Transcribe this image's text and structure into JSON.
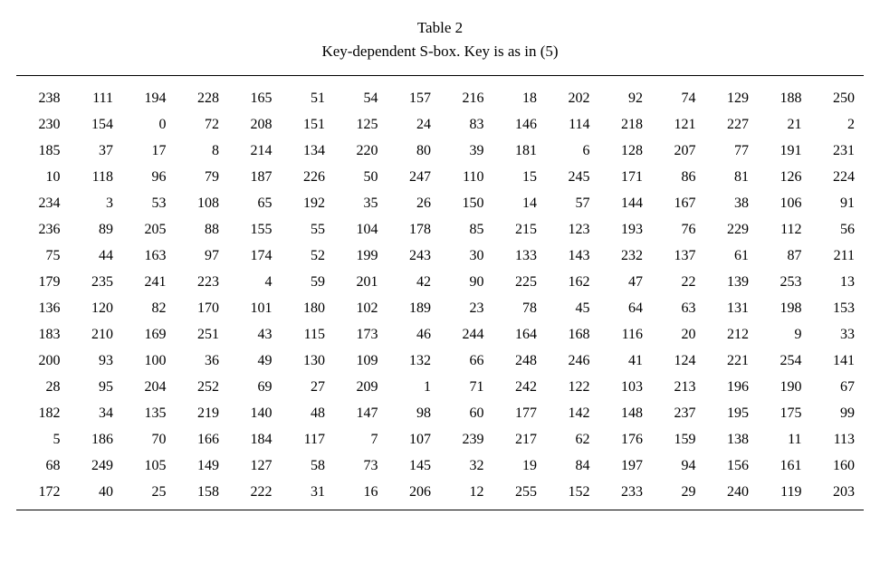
{
  "caption": {
    "label": "Table 2",
    "desc": "Key-dependent S-box. Key is as in (5)"
  },
  "table": {
    "type": "table",
    "n_cols": 16,
    "font_size_pt": 16,
    "text_color": "#000000",
    "background_color": "#ffffff",
    "rule_color": "#000000",
    "cell_align": "right",
    "rows": [
      [
        238,
        111,
        194,
        228,
        165,
        51,
        54,
        157,
        216,
        18,
        202,
        92,
        74,
        129,
        188,
        250
      ],
      [
        230,
        154,
        0,
        72,
        208,
        151,
        125,
        24,
        83,
        146,
        114,
        218,
        121,
        227,
        21,
        2
      ],
      [
        185,
        37,
        17,
        8,
        214,
        134,
        220,
        80,
        39,
        181,
        6,
        128,
        207,
        77,
        191,
        231
      ],
      [
        10,
        118,
        96,
        79,
        187,
        226,
        50,
        247,
        110,
        15,
        245,
        171,
        86,
        81,
        126,
        224
      ],
      [
        234,
        3,
        53,
        108,
        65,
        192,
        35,
        26,
        150,
        14,
        57,
        144,
        167,
        38,
        106,
        91
      ],
      [
        236,
        89,
        205,
        88,
        155,
        55,
        104,
        178,
        85,
        215,
        123,
        193,
        76,
        229,
        112,
        56
      ],
      [
        75,
        44,
        163,
        97,
        174,
        52,
        199,
        243,
        30,
        133,
        143,
        232,
        137,
        61,
        87,
        211
      ],
      [
        179,
        235,
        241,
        223,
        4,
        59,
        201,
        42,
        90,
        225,
        162,
        47,
        22,
        139,
        253,
        13
      ],
      [
        136,
        120,
        82,
        170,
        101,
        180,
        102,
        189,
        23,
        78,
        45,
        64,
        63,
        131,
        198,
        153
      ],
      [
        183,
        210,
        169,
        251,
        43,
        115,
        173,
        46,
        244,
        164,
        168,
        116,
        20,
        212,
        9,
        33
      ],
      [
        200,
        93,
        100,
        36,
        49,
        130,
        109,
        132,
        66,
        248,
        246,
        41,
        124,
        221,
        254,
        141
      ],
      [
        28,
        95,
        204,
        252,
        69,
        27,
        209,
        1,
        71,
        242,
        122,
        103,
        213,
        196,
        190,
        67
      ],
      [
        182,
        34,
        135,
        219,
        140,
        48,
        147,
        98,
        60,
        177,
        142,
        148,
        237,
        195,
        175,
        99
      ],
      [
        5,
        186,
        70,
        166,
        184,
        117,
        7,
        107,
        239,
        217,
        62,
        176,
        159,
        138,
        11,
        113
      ],
      [
        68,
        249,
        105,
        149,
        127,
        58,
        73,
        145,
        32,
        19,
        84,
        197,
        94,
        156,
        161,
        160
      ],
      [
        172,
        40,
        25,
        158,
        222,
        31,
        16,
        206,
        12,
        255,
        152,
        233,
        29,
        240,
        119,
        203
      ]
    ]
  }
}
